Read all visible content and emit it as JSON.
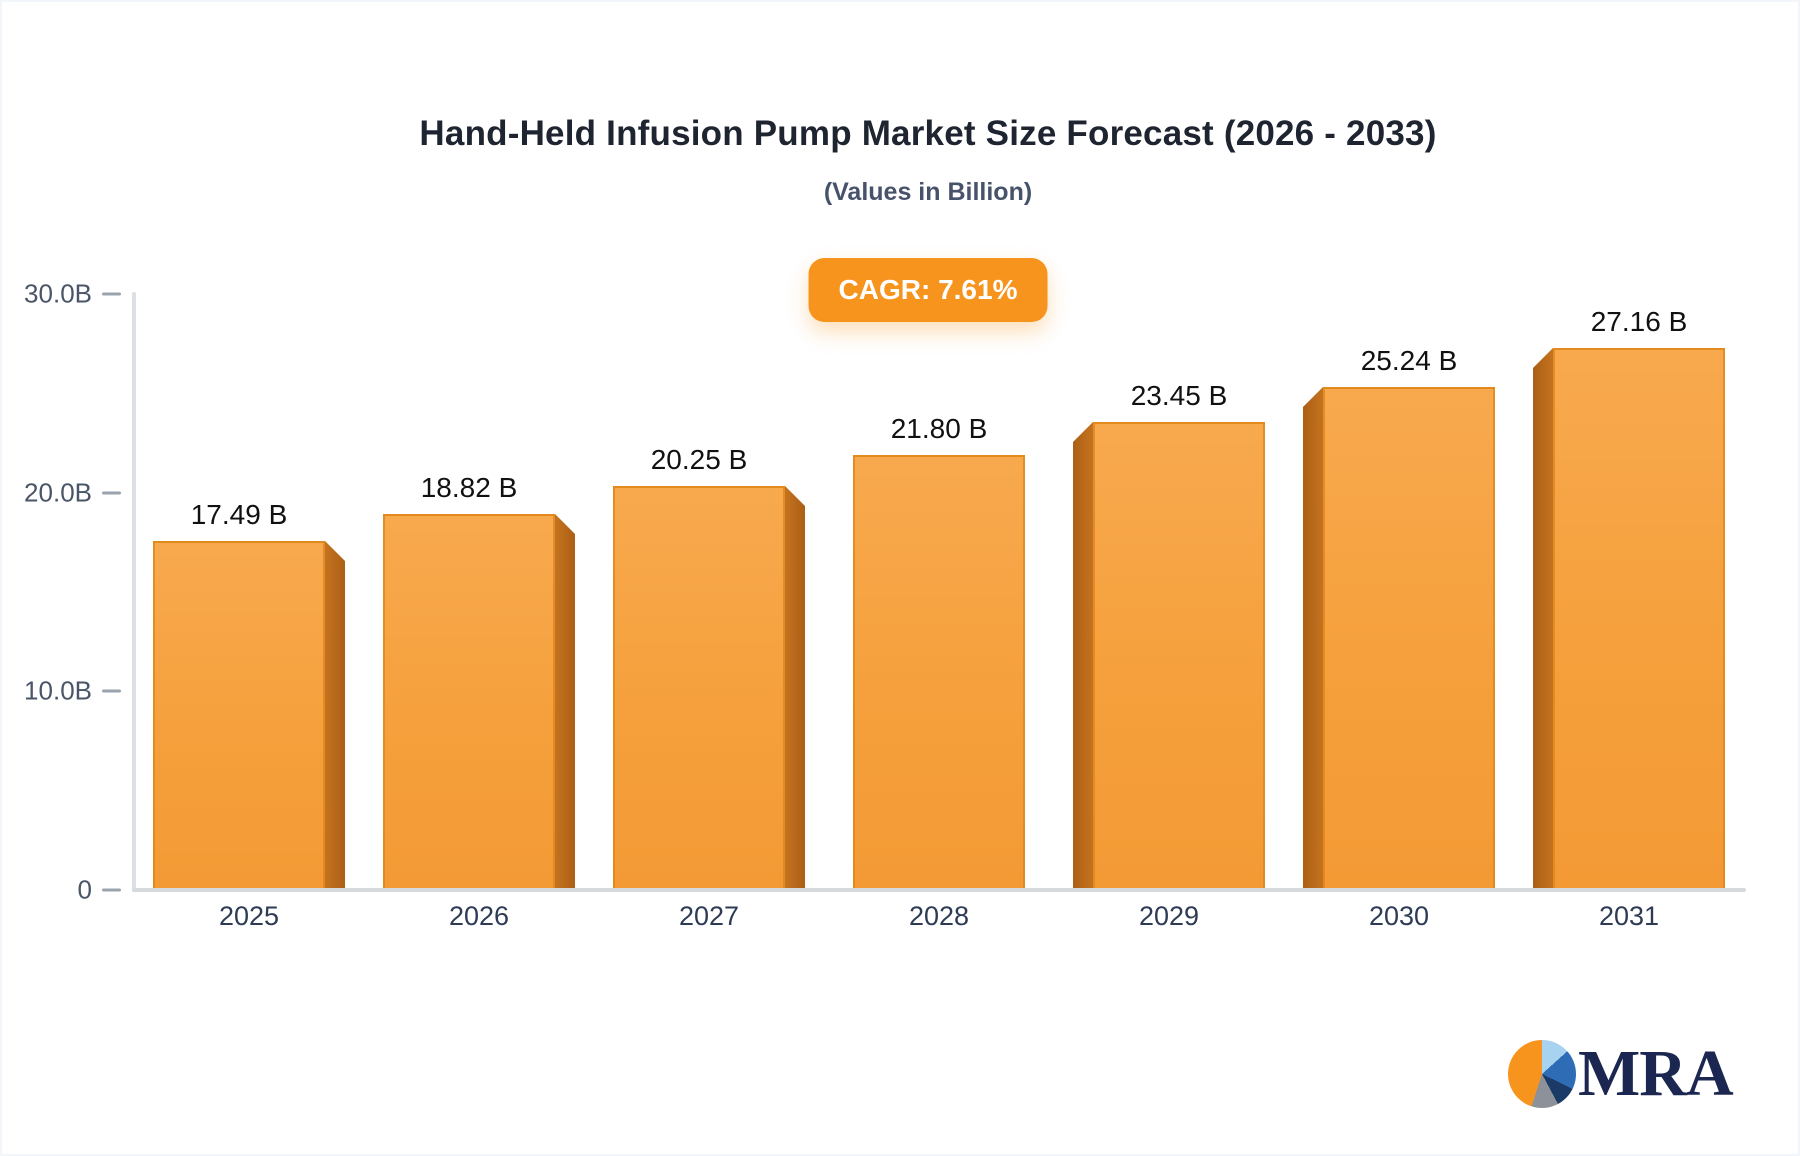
{
  "header": {
    "title": "Hand-Held Infusion Pump Market Size Forecast (2026 - 2033)",
    "subtitle": "(Values in Billion)"
  },
  "badge": {
    "label": "CAGR: 7.61%",
    "bg_color": "#F7941E",
    "text_color": "#FFFFFF"
  },
  "chart_data": {
    "type": "bar",
    "title": "Hand-Held Infusion Pump Market Size Forecast (2026 - 2033)",
    "subtitle": "(Values in Billion)",
    "cagr": "7.61%",
    "categories": [
      "2025",
      "2026",
      "2027",
      "2028",
      "2029",
      "2030",
      "2031"
    ],
    "values": [
      17.49,
      18.82,
      20.25,
      21.8,
      23.45,
      25.24,
      27.16
    ],
    "bar_labels": [
      "17.49 B",
      "18.82 B",
      "20.25 B",
      "21.80 B",
      "23.45 B",
      "25.24 B",
      "27.16 B"
    ],
    "xlabel": "",
    "ylabel": "",
    "ylim": [
      0,
      30
    ],
    "yticks": [
      {
        "value": 30,
        "label": "30.0B"
      },
      {
        "value": 20,
        "label": "20.0B"
      },
      {
        "value": 10,
        "label": "10.0B"
      },
      {
        "value": 0,
        "label": "0"
      }
    ],
    "grid": false,
    "legend_position": "none",
    "bar_color": "#F5A03C",
    "bar_side_color": "#B5661A",
    "style_3d": "perspective: side faces point toward chart center"
  },
  "logo": {
    "text": "MRA",
    "pie_colors": [
      "#F7941E",
      "#A7D3F0",
      "#2E6CB5",
      "#1C3A66",
      "#8D929A"
    ],
    "text_color": "#1B2750"
  }
}
